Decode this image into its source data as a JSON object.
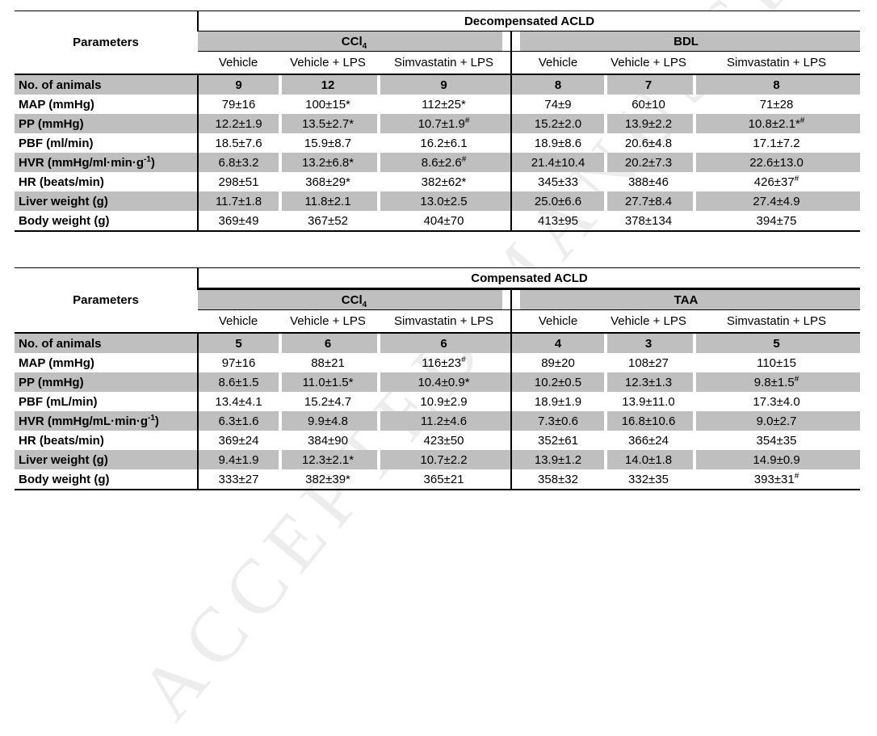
{
  "watermark": {
    "text": "ACCEPTED MANUSCRIPT"
  },
  "colors": {
    "shading_gray": "#bfbfbf",
    "border_black": "#000000",
    "background": "#ffffff"
  },
  "parameters_header": "Parameters",
  "tables": [
    {
      "title": "Decompensated ACLD",
      "groups": [
        {
          "label": "CCl~4~",
          "columns": [
            "Vehicle",
            "Vehicle + LPS",
            "Simvastatin + LPS"
          ]
        },
        {
          "label": "BDL",
          "columns": [
            "Vehicle",
            "Vehicle + LPS",
            "Simvastatin + LPS"
          ]
        }
      ],
      "rows": [
        {
          "label": "No. of animals",
          "shaded": true,
          "bold_values": true,
          "values": [
            "9",
            "12",
            "9",
            "8",
            "7",
            "8"
          ]
        },
        {
          "label": "MAP (mmHg)",
          "shaded": false,
          "values": [
            "79±16",
            "100±15*",
            "112±25*",
            "74±9",
            "60±10",
            "71±28"
          ]
        },
        {
          "label": "PP (mmHg)",
          "shaded": true,
          "values": [
            "12.2±1.9",
            "13.5±2.7*",
            "10.7±1.9^#^",
            "15.2±2.0",
            "13.9±2.2",
            "10.8±2.1*^#^"
          ]
        },
        {
          "label": "PBF (ml/min)",
          "shaded": false,
          "values": [
            "18.5±7.6",
            "15.9±8.7",
            "16.2±6.1",
            "18.9±8.6",
            "20.6±4.8",
            "17.1±7.2"
          ]
        },
        {
          "label": "HVR (mmHg/ml·min·g^-1^)",
          "shaded": true,
          "values": [
            "6.8±3.2",
            "13.2±6.8*",
            "8.6±2.6^#^",
            "21.4±10.4",
            "20.2±7.3",
            "22.6±13.0"
          ]
        },
        {
          "label": "HR (beats/min)",
          "shaded": false,
          "values": [
            "298±51",
            "368±29*",
            "382±62*",
            "345±33",
            "388±46",
            "426±37^#^"
          ]
        },
        {
          "label": "Liver weight (g)",
          "shaded": true,
          "values": [
            "11.7±1.8",
            "11.8±2.1",
            "13.0±2.5",
            "25.0±6.6",
            "27.7±8.4",
            "27.4±4.9"
          ]
        },
        {
          "label": "Body weight (g)",
          "shaded": false,
          "values": [
            "369±49",
            "367±52",
            "404±70",
            "413±95",
            "378±134",
            "394±75"
          ]
        }
      ]
    },
    {
      "title": "Compensated ACLD",
      "groups": [
        {
          "label": "CCl~4~",
          "columns": [
            "Vehicle",
            "Vehicle + LPS",
            "Simvastatin + LPS"
          ]
        },
        {
          "label": "TAA",
          "columns": [
            "Vehicle",
            "Vehicle + LPS",
            "Simvastatin + LPS"
          ]
        }
      ],
      "rows": [
        {
          "label": "No. of animals",
          "shaded": true,
          "bold_values": true,
          "values": [
            "5",
            "6",
            "6",
            "4",
            "3",
            "5"
          ]
        },
        {
          "label": "MAP (mmHg)",
          "shaded": false,
          "values": [
            "97±16",
            "88±21",
            "116±23^#^",
            "89±20",
            "108±27",
            "110±15"
          ]
        },
        {
          "label": "PP (mmHg)",
          "shaded": true,
          "values": [
            "8.6±1.5",
            "11.0±1.5*",
            "10.4±0.9*",
            "10.2±0.5",
            "12.3±1.3",
            "9.8±1.5^#^"
          ]
        },
        {
          "label": "PBF (mL/min)",
          "shaded": false,
          "values": [
            "13.4±4.1",
            "15.2±4.7",
            "10.9±2.9",
            "18.9±1.9",
            "13.9±11.0",
            "17.3±4.0"
          ]
        },
        {
          "label": "HVR (mmHg/mL·min·g^-1^)",
          "shaded": true,
          "values": [
            "6.3±1.6",
            "9.9±4.8",
            "11.2±4.6",
            "7.3±0.6",
            "16.8±10.6",
            "9.0±2.7"
          ]
        },
        {
          "label": "HR (beats/min)",
          "shaded": false,
          "values": [
            "369±24",
            "384±90",
            "423±50",
            "352±61",
            "366±24",
            "354±35"
          ]
        },
        {
          "label": "Liver weight (g)",
          "shaded": true,
          "values": [
            "9.4±1.9",
            "12.3±2.1*",
            "10.7±2.2",
            "13.9±1.2",
            "14.0±1.8",
            "14.9±0.9"
          ]
        },
        {
          "label": "Body weight (g)",
          "shaded": false,
          "values": [
            "333±27",
            "382±39*",
            "365±21",
            "358±32",
            "332±35",
            "393±31^#^"
          ]
        }
      ]
    }
  ]
}
